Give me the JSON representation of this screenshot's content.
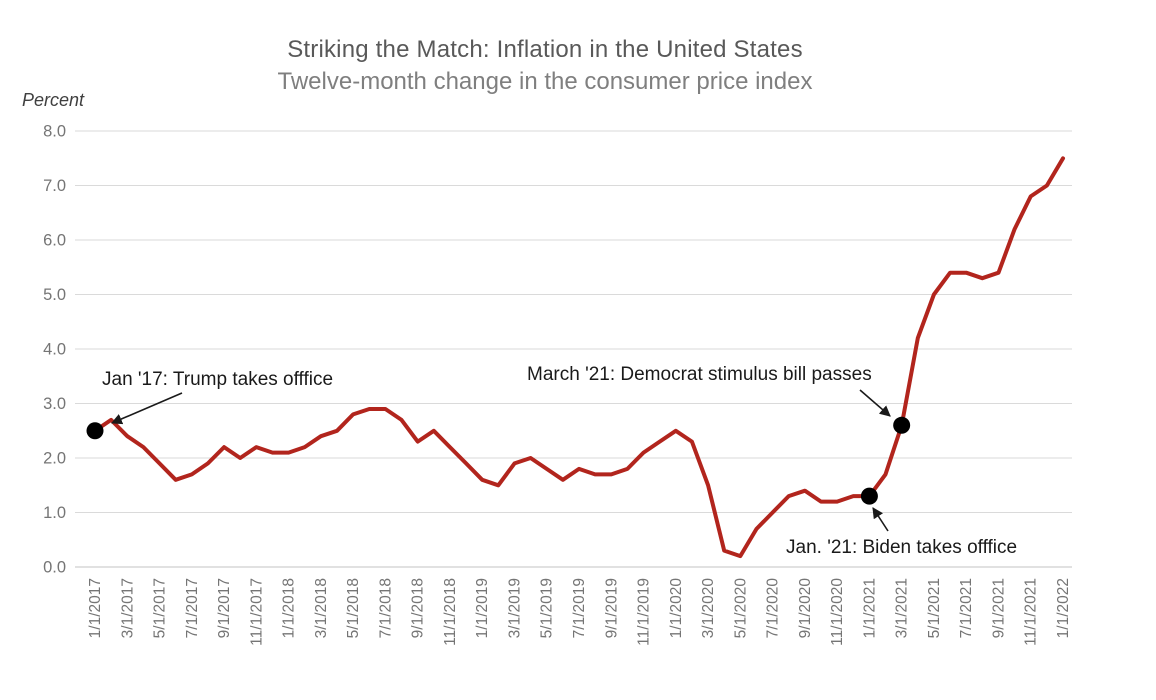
{
  "title": "Striking the Match: Inflation in the United States",
  "subtitle": "Twelve-month change in the consumer price index",
  "y_axis_unit": "Percent",
  "colors": {
    "line": "#b2251d",
    "gridline": "#dadada",
    "baseline": "#c3c3c3",
    "title_text": "#595959",
    "subtitle_text": "#7f7f7f",
    "axis_text": "#757575",
    "annotation_text": "#1a1a1a",
    "marker": "#000000"
  },
  "annotations": [
    {
      "label": "Jan '17: Trump takes offfice"
    },
    {
      "label": "March '21: Democrat stimulus bill passes"
    },
    {
      "label": "Jan. '21: Biden takes offfice"
    }
  ],
  "chart_data": {
    "type": "line",
    "title": "Striking the Match: Inflation in the United States",
    "subtitle": "Twelve-month change in the consumer price index",
    "xlabel": "",
    "ylabel": "Percent",
    "ylim": [
      0.0,
      8.0
    ],
    "y_tick_step": 1.0,
    "y_tick_labels": [
      "0.0",
      "1.0",
      "2.0",
      "3.0",
      "4.0",
      "5.0",
      "6.0",
      "7.0",
      "8.0"
    ],
    "grid": true,
    "legend": "none",
    "line_color": "#b2251d",
    "x": [
      "1/1/2017",
      "2/1/2017",
      "3/1/2017",
      "4/1/2017",
      "5/1/2017",
      "6/1/2017",
      "7/1/2017",
      "8/1/2017",
      "9/1/2017",
      "10/1/2017",
      "11/1/2017",
      "12/1/2017",
      "1/1/2018",
      "2/1/2018",
      "3/1/2018",
      "4/1/2018",
      "5/1/2018",
      "6/1/2018",
      "7/1/2018",
      "8/1/2018",
      "9/1/2018",
      "10/1/2018",
      "11/1/2018",
      "12/1/2018",
      "1/1/2019",
      "2/1/2019",
      "3/1/2019",
      "4/1/2019",
      "5/1/2019",
      "6/1/2019",
      "7/1/2019",
      "8/1/2019",
      "9/1/2019",
      "10/1/2019",
      "11/1/2019",
      "12/1/2019",
      "1/1/2020",
      "2/1/2020",
      "3/1/2020",
      "4/1/2020",
      "5/1/2020",
      "6/1/2020",
      "7/1/2020",
      "8/1/2020",
      "9/1/2020",
      "10/1/2020",
      "11/1/2020",
      "12/1/2020",
      "1/1/2021",
      "2/1/2021",
      "3/1/2021",
      "4/1/2021",
      "5/1/2021",
      "6/1/2021",
      "7/1/2021",
      "8/1/2021",
      "9/1/2021",
      "10/1/2021",
      "11/1/2021",
      "12/1/2021",
      "1/1/2022"
    ],
    "x_tick_labels": [
      "1/1/2017",
      "3/1/2017",
      "5/1/2017",
      "7/1/2017",
      "9/1/2017",
      "11/1/2017",
      "1/1/2018",
      "3/1/2018",
      "5/1/2018",
      "7/1/2018",
      "9/1/2018",
      "11/1/2018",
      "1/1/2019",
      "3/1/2019",
      "5/1/2019",
      "7/1/2019",
      "9/1/2019",
      "11/1/2019",
      "1/1/2020",
      "3/1/2020",
      "5/1/2020",
      "7/1/2020",
      "9/1/2020",
      "11/1/2020",
      "1/1/2021",
      "3/1/2021",
      "5/1/2021",
      "7/1/2021",
      "9/1/2021",
      "11/1/2021",
      "1/1/2022"
    ],
    "values": [
      2.5,
      2.7,
      2.4,
      2.2,
      1.9,
      1.6,
      1.7,
      1.9,
      2.2,
      2.0,
      2.2,
      2.1,
      2.1,
      2.2,
      2.4,
      2.5,
      2.8,
      2.9,
      2.9,
      2.7,
      2.3,
      2.5,
      2.2,
      1.9,
      1.6,
      1.5,
      1.9,
      2.0,
      1.8,
      1.6,
      1.8,
      1.7,
      1.7,
      1.8,
      2.1,
      2.3,
      2.5,
      2.3,
      1.5,
      0.3,
      0.2,
      0.7,
      1.0,
      1.3,
      1.4,
      1.2,
      1.2,
      1.3,
      1.3,
      1.7,
      2.6,
      4.2,
      5.0,
      5.4,
      5.4,
      5.3,
      5.4,
      6.2,
      6.8,
      7.0,
      7.5
    ],
    "event_markers": [
      {
        "date": "1/1/2017",
        "value": 2.5,
        "label": "Jan '17: Trump takes offfice"
      },
      {
        "date": "3/1/2021",
        "value": 2.6,
        "label": "March '21: Democrat stimulus bill passes"
      },
      {
        "date": "1/1/2021",
        "value": 1.3,
        "label": "Jan. '21: Biden takes offfice"
      }
    ]
  }
}
